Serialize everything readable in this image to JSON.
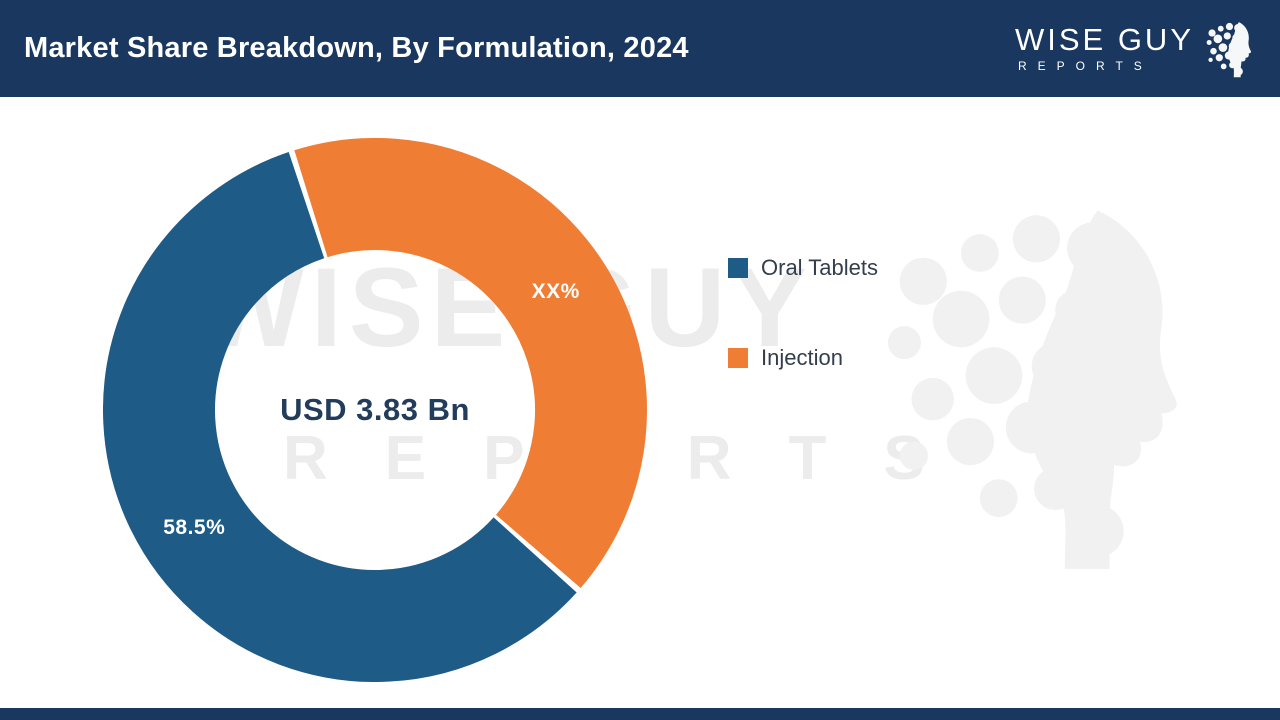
{
  "header": {
    "title": "Market Share Breakdown, By Formulation, 2024",
    "bg_color": "#19375f",
    "logo": {
      "line1": "WISE GUY",
      "line2": "REPORTS"
    }
  },
  "watermark": {
    "line1": "WISE GUY",
    "line2": "REPORTS"
  },
  "chart_data": {
    "type": "pie",
    "variant": "donut",
    "title": "Market Share Breakdown, By Formulation, 2024",
    "center_label": "USD 3.83 Bn",
    "start_angle_deg": 131.5,
    "legend_position": "right",
    "series": [
      {
        "name": "Oral Tablets",
        "value": 58.5,
        "label": "58.5%",
        "color": "#1e5c87"
      },
      {
        "name": "Injection",
        "value": 41.5,
        "label": "XX%",
        "color": "#ef7d33"
      }
    ]
  }
}
